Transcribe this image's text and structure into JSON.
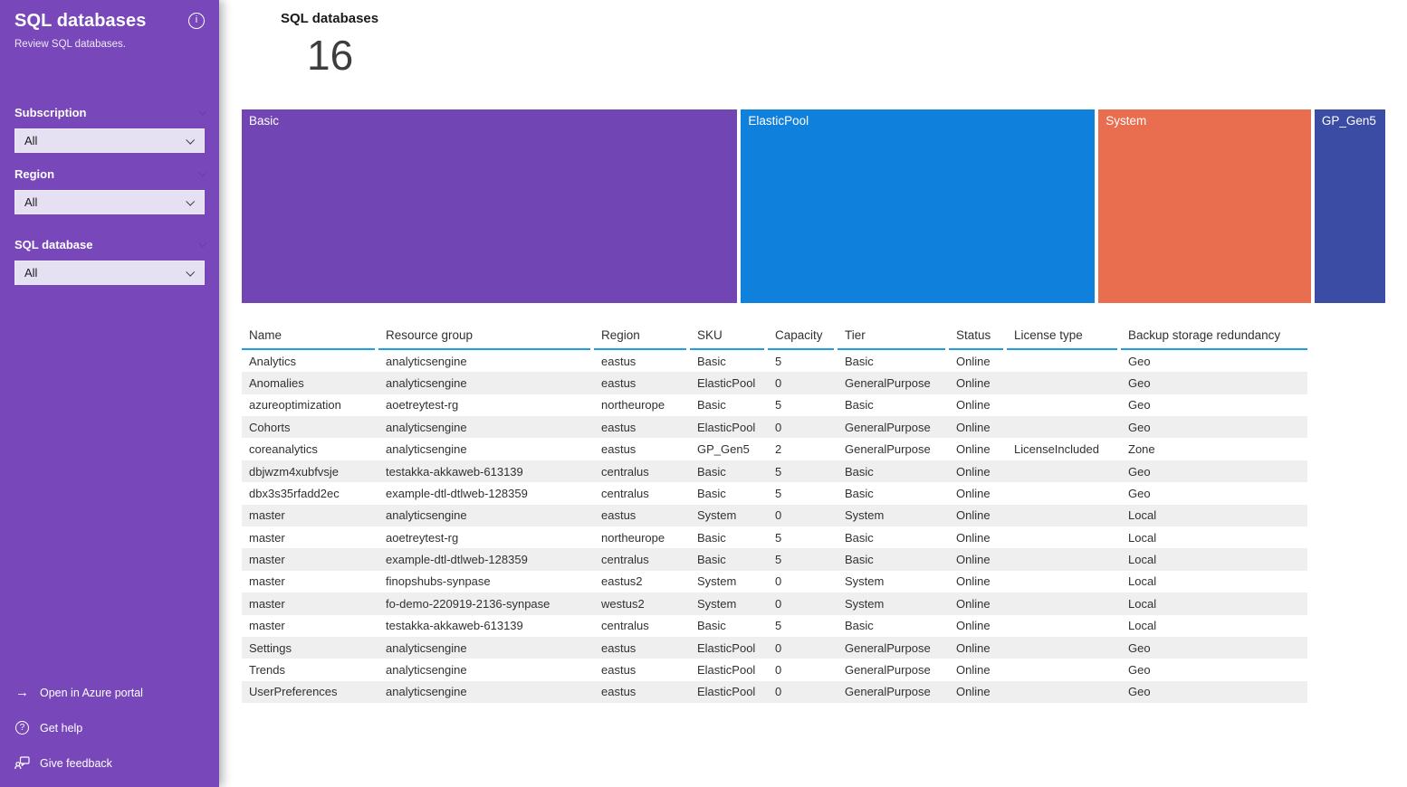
{
  "theme": {
    "sidebar_purple": "#7847BA",
    "header_underline": "#1E9DE6",
    "row_stripe": "#EFEFEF"
  },
  "sidebar": {
    "title": "SQL databases",
    "subtitle": "Review SQL databases.",
    "filters": [
      {
        "label": "Subscription",
        "value": "All"
      },
      {
        "label": "Region",
        "value": "All"
      },
      {
        "label": "SQL database",
        "value": "All"
      }
    ],
    "footer_links": [
      {
        "icon": "arrow-right-icon",
        "label": "Open in Azure portal"
      },
      {
        "icon": "help-icon",
        "label": "Get help"
      },
      {
        "icon": "feedback-icon",
        "label": "Give feedback"
      }
    ]
  },
  "main": {
    "title": "SQL databases",
    "count": "16"
  },
  "chart_data": {
    "type": "treemap",
    "categories": [
      "Basic",
      "ElasticPool",
      "System",
      "GP_Gen5"
    ],
    "values": [
      7,
      5,
      3,
      1
    ],
    "segments": [
      {
        "label": "Basic",
        "value": 7,
        "color": "#7245B4"
      },
      {
        "label": "ElasticPool",
        "value": 5,
        "color": "#0F80DC"
      },
      {
        "label": "System",
        "value": 3,
        "color": "#E96D4F"
      },
      {
        "label": "GP_Gen5",
        "value": 1,
        "color": "#3A4CA4"
      }
    ]
  },
  "table": {
    "columns": [
      "Name",
      "Resource group",
      "Region",
      "SKU",
      "Capacity",
      "Tier",
      "Status",
      "License type",
      "Backup storage redundancy"
    ],
    "rows": [
      [
        "Analytics",
        "analyticsengine",
        "eastus",
        "Basic",
        "5",
        "Basic",
        "Online",
        "",
        "Geo"
      ],
      [
        "Anomalies",
        "analyticsengine",
        "eastus",
        "ElasticPool",
        "0",
        "GeneralPurpose",
        "Online",
        "",
        "Geo"
      ],
      [
        "azureoptimization",
        "aoetreytest-rg",
        "northeurope",
        "Basic",
        "5",
        "Basic",
        "Online",
        "",
        "Geo"
      ],
      [
        "Cohorts",
        "analyticsengine",
        "eastus",
        "ElasticPool",
        "0",
        "GeneralPurpose",
        "Online",
        "",
        "Geo"
      ],
      [
        "coreanalytics",
        "analyticsengine",
        "eastus",
        "GP_Gen5",
        "2",
        "GeneralPurpose",
        "Online",
        "LicenseIncluded",
        "Zone"
      ],
      [
        "dbjwzm4xubfvsje",
        "testakka-akkaweb-613139",
        "centralus",
        "Basic",
        "5",
        "Basic",
        "Online",
        "",
        "Geo"
      ],
      [
        "dbx3s35rfadd2ec",
        "example-dtl-dtlweb-128359",
        "centralus",
        "Basic",
        "5",
        "Basic",
        "Online",
        "",
        "Geo"
      ],
      [
        "master",
        "analyticsengine",
        "eastus",
        "System",
        "0",
        "System",
        "Online",
        "",
        "Local"
      ],
      [
        "master",
        "aoetreytest-rg",
        "northeurope",
        "Basic",
        "5",
        "Basic",
        "Online",
        "",
        "Local"
      ],
      [
        "master",
        "example-dtl-dtlweb-128359",
        "centralus",
        "Basic",
        "5",
        "Basic",
        "Online",
        "",
        "Local"
      ],
      [
        "master",
        "finopshubs-synpase",
        "eastus2",
        "System",
        "0",
        "System",
        "Online",
        "",
        "Local"
      ],
      [
        "master",
        "fo-demo-220919-2136-synpase",
        "westus2",
        "System",
        "0",
        "System",
        "Online",
        "",
        "Local"
      ],
      [
        "master",
        "testakka-akkaweb-613139",
        "centralus",
        "Basic",
        "5",
        "Basic",
        "Online",
        "",
        "Local"
      ],
      [
        "Settings",
        "analyticsengine",
        "eastus",
        "ElasticPool",
        "0",
        "GeneralPurpose",
        "Online",
        "",
        "Geo"
      ],
      [
        "Trends",
        "analyticsengine",
        "eastus",
        "ElasticPool",
        "0",
        "GeneralPurpose",
        "Online",
        "",
        "Geo"
      ],
      [
        "UserPreferences",
        "analyticsengine",
        "eastus",
        "ElasticPool",
        "0",
        "GeneralPurpose",
        "Online",
        "",
        "Geo"
      ]
    ]
  }
}
